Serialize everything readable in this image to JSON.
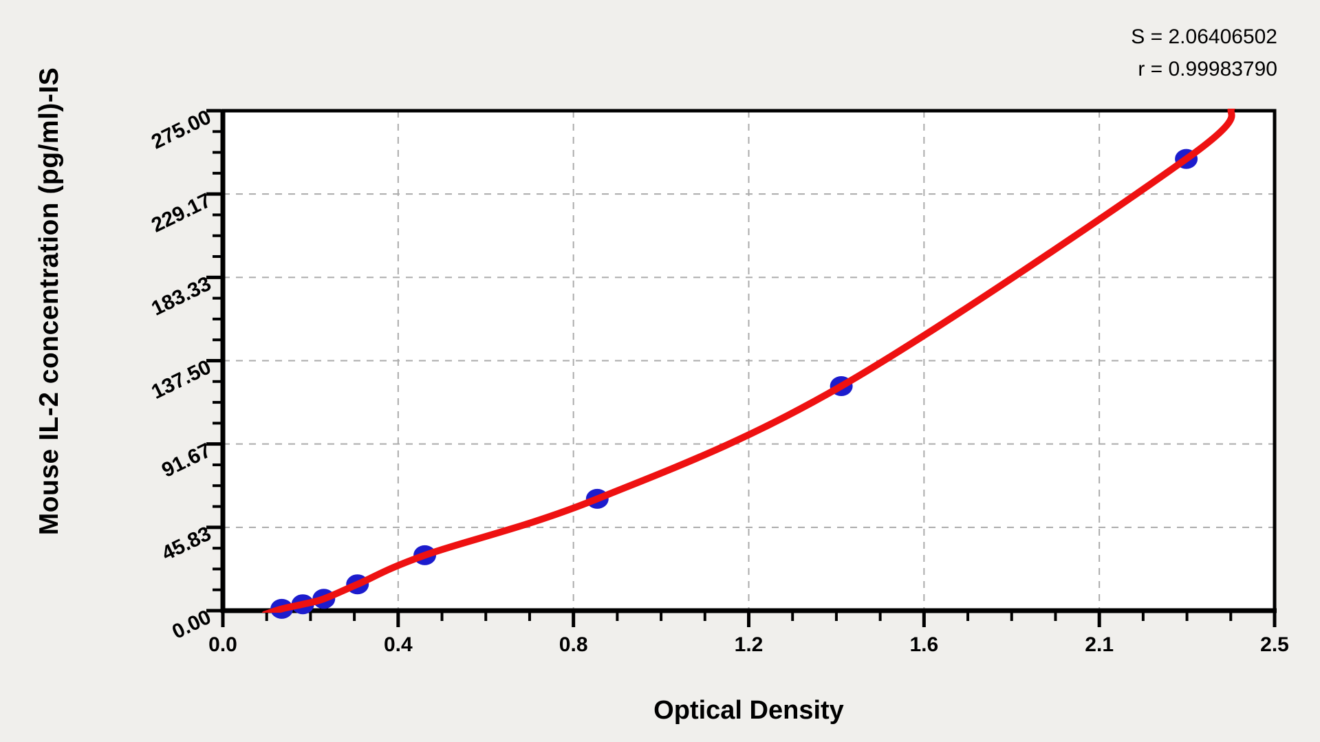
{
  "chart_data": {
    "type": "scatter",
    "title": "",
    "xlabel": "Optical Density",
    "ylabel": "Mouse IL-2 concentration (pg/ml)-IS",
    "xlim": [
      0,
      2.5
    ],
    "ylim": [
      0,
      275
    ],
    "x_tick_labels": [
      "0.0",
      "0.4",
      "0.8",
      "1.2",
      "1.6",
      "2.1",
      "2.5"
    ],
    "y_tick_labels": [
      "0.00",
      "45.83",
      "91.67",
      "137.50",
      "183.33",
      "229.17",
      "275.00"
    ],
    "minor_ticks_per_major_interval": 3,
    "grid": {
      "style": "dashed",
      "color": "#ababab",
      "at_major_ticks": true
    },
    "legend": {
      "visible": false
    },
    "series": [
      {
        "name": "standard-points",
        "type": "scatter",
        "marker_color": "#1c1ccd",
        "points_od": [
          0.14,
          0.19,
          0.24,
          0.32,
          0.48,
          0.89,
          1.47,
          2.29
        ],
        "points_conc": [
          1.0,
          3.5,
          6.5,
          14.5,
          30.5,
          61.5,
          123.5,
          248.5
        ]
      },
      {
        "name": "fitted-curve",
        "type": "line",
        "color": "#ee1111",
        "starts_at": {
          "od": 0.1,
          "conc": -2
        },
        "extends_to": {
          "od": 2.4,
          "conc": 277
        }
      }
    ],
    "annotations": [
      "S = 2.06406502",
      "r = 0.99983790"
    ]
  }
}
